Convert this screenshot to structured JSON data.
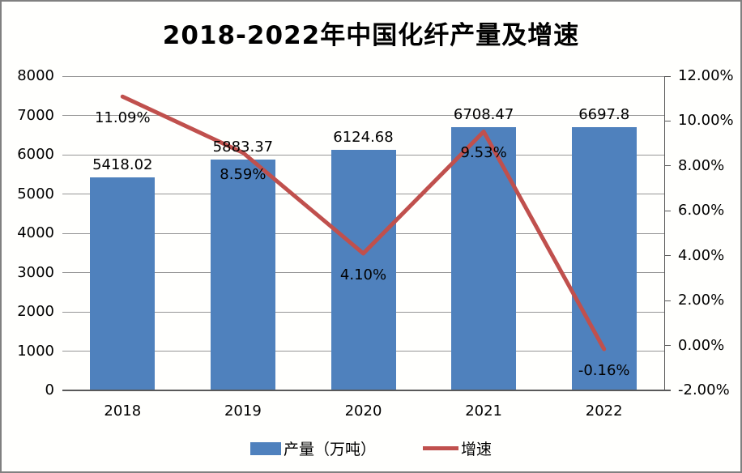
{
  "title": "2018-2022年中国化纤产量及增速",
  "colors": {
    "bar": "#4F81BD",
    "line": "#C0504D",
    "grid": "#969696",
    "axis": "#595959",
    "frame_border": "#808080",
    "text": "#000000"
  },
  "legend": [
    {
      "swatch": "bar-swatch",
      "label": "产量（万吨）"
    },
    {
      "swatch": "line-swatch",
      "label": "增速"
    }
  ],
  "chart_data": {
    "type": "bar+line combo",
    "title": "2018-2022年中国化纤产量及增速",
    "categories": [
      "2018",
      "2019",
      "2020",
      "2021",
      "2022"
    ],
    "series": [
      {
        "name": "产量（万吨）",
        "type": "bar",
        "axis": "left",
        "values": [
          5418.02,
          5883.37,
          6124.68,
          6708.47,
          6697.8
        ],
        "labels": [
          "5418.02",
          "5883.37",
          "6124.68",
          "6708.47",
          "6697.8"
        ]
      },
      {
        "name": "增速",
        "type": "line",
        "axis": "right",
        "values": [
          11.09,
          8.59,
          4.1,
          9.53,
          -0.16
        ],
        "labels": [
          "11.09%",
          "8.59%",
          "4.10%",
          "9.53%",
          "-0.16%"
        ]
      }
    ],
    "left_axis": {
      "min": 0,
      "max": 8000,
      "step": 1000,
      "ticks": [
        "0",
        "1000",
        "2000",
        "3000",
        "4000",
        "5000",
        "6000",
        "7000",
        "8000"
      ]
    },
    "right_axis": {
      "min": -2,
      "max": 12,
      "step": 2,
      "ticks": [
        "-2.00%",
        "0.00%",
        "2.00%",
        "4.00%",
        "6.00%",
        "8.00%",
        "10.00%",
        "12.00%"
      ]
    },
    "grid": true,
    "legend_position": "bottom"
  }
}
